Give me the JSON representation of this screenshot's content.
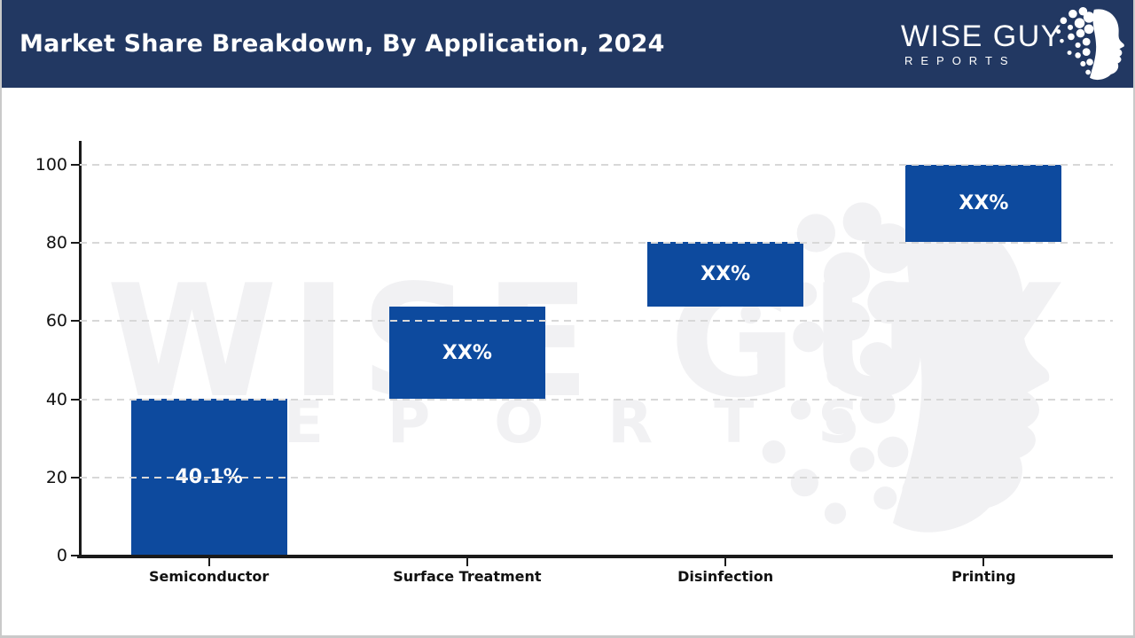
{
  "header": {
    "title": "Market Share Breakdown, By Application, 2024",
    "logo": {
      "line1": "WISE GUY",
      "line2": "REPORTS",
      "face_icon": "dotted-head-profile"
    },
    "bg_color": "#223862"
  },
  "watermark": {
    "line1": "WISE GUY",
    "line2": "REPORTS",
    "color": "#f1f1f3"
  },
  "chart_data": {
    "type": "bar",
    "subtype": "waterfall",
    "title": "Market Share Breakdown, By Application, 2024",
    "categories": [
      "Semiconductor",
      "Surface Treatment",
      "Disinfection",
      "Printing"
    ],
    "segments": [
      {
        "category": "Semiconductor",
        "start": 0,
        "end": 40.1,
        "value": 40.1,
        "label": "40.1%"
      },
      {
        "category": "Surface Treatment",
        "start": 40.1,
        "end": 63.7,
        "value": 23.6,
        "label": "XX%"
      },
      {
        "category": "Disinfection",
        "start": 63.7,
        "end": 80.3,
        "value": 16.6,
        "label": "XX%"
      },
      {
        "category": "Printing",
        "start": 80.3,
        "end": 100,
        "value": 19.7,
        "label": "XX%"
      }
    ],
    "xlabel": "",
    "ylabel": "",
    "ylim": [
      0,
      100
    ],
    "yticks": [
      0,
      20,
      40,
      60,
      80,
      100
    ],
    "grid": true,
    "grid_style": "dashed",
    "legend": "none",
    "bar_color": "#0d4a9e",
    "bar_label_color": "#ffffff"
  }
}
